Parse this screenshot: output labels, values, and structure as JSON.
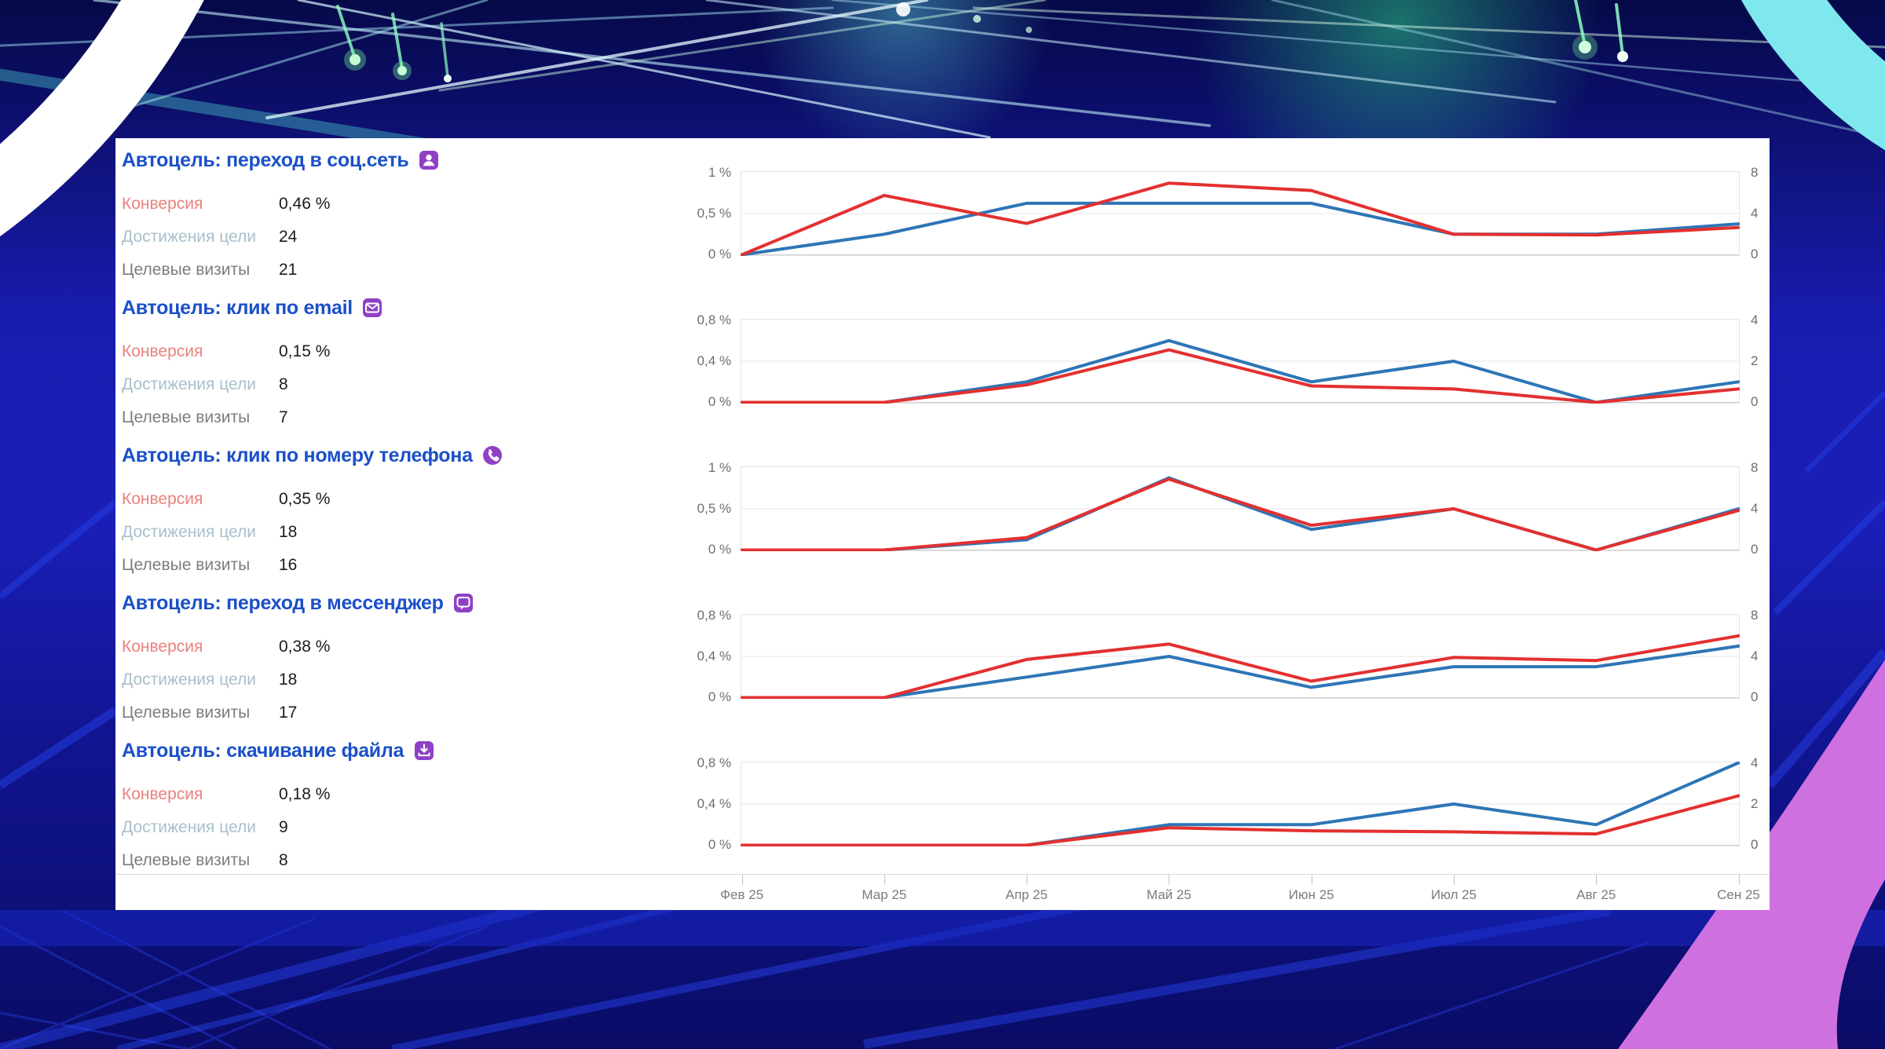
{
  "colors": {
    "title_blue": "#1b50c8",
    "icon_purple": "#8f41c6",
    "conversion_label_color": "#e8827e",
    "reaches_label_color": "#a9bfcc",
    "visits_label_color": "#7d7d7d",
    "line_red": "#e33030",
    "line_blue": "#2e75b6",
    "deco_white_ring": "#ffffff",
    "deco_cyan_ring": "#7fe7ee",
    "deco_violet_band": "#cf70e0",
    "background_navy": "#181cae"
  },
  "metric_labels": {
    "conversion": "Конверсия",
    "reaches": "Достижения цели",
    "visits": "Целевые визиты"
  },
  "months": [
    "Фев 25",
    "Мар 25",
    "Апр 25",
    "Май 25",
    "Июн 25",
    "Июл 25",
    "Авг 25",
    "Сен 25"
  ],
  "goals": [
    {
      "title": "Автоцель: переход в соц.сеть",
      "icon": "user-icon",
      "conversion": "0,46 %",
      "reaches": "24",
      "visits": "21"
    },
    {
      "title": "Автоцель: клик по email",
      "icon": "email-icon",
      "conversion": "0,15 %",
      "reaches": "8",
      "visits": "7"
    },
    {
      "title": "Автоцель: клик по номеру телефона",
      "icon": "phone-icon",
      "conversion": "0,35 %",
      "reaches": "18",
      "visits": "16"
    },
    {
      "title": "Автоцель: переход в мессенджер",
      "icon": "messenger-icon",
      "conversion": "0,38 %",
      "reaches": "18",
      "visits": "17"
    },
    {
      "title": "Автоцель: скачивание файла",
      "icon": "download-icon",
      "conversion": "0,18 %",
      "reaches": "9",
      "visits": "8"
    }
  ],
  "chart_data": [
    {
      "type": "line",
      "title": "Автоцель: переход в соц.сеть",
      "categories": [
        "Фев 25",
        "Мар 25",
        "Апр 25",
        "Май 25",
        "Июн 25",
        "Июл 25",
        "Авг 25",
        "Сен 25"
      ],
      "left_axis": {
        "labels": [
          "1 %",
          "0,5 %",
          "0 %"
        ],
        "max": 1,
        "min": 0,
        "unit": "%"
      },
      "right_axis": {
        "labels": [
          "8",
          "4",
          "0"
        ],
        "max": 8,
        "min": 0
      },
      "grid": true,
      "legend": "none",
      "series": [
        {
          "name": "Достижения цели",
          "axis": "right",
          "color": "#2e75b6",
          "values": [
            0,
            2,
            5,
            5,
            5,
            2,
            2,
            3
          ]
        },
        {
          "name": "Конверсия",
          "axis": "left",
          "color": "#e33030",
          "values": [
            0,
            0.72,
            0.38,
            0.87,
            0.78,
            0.25,
            0.24,
            0.33
          ]
        }
      ]
    },
    {
      "type": "line",
      "title": "Автоцель: клик по email",
      "categories": [
        "Фев 25",
        "Мар 25",
        "Апр 25",
        "Май 25",
        "Июн 25",
        "Июл 25",
        "Авг 25",
        "Сен 25"
      ],
      "left_axis": {
        "labels": [
          "0,8 %",
          "0,4 %",
          "0 %"
        ],
        "max": 0.8,
        "min": 0,
        "unit": "%"
      },
      "right_axis": {
        "labels": [
          "4",
          "2",
          "0"
        ],
        "max": 4,
        "min": 0
      },
      "grid": true,
      "legend": "none",
      "series": [
        {
          "name": "Достижения цели",
          "axis": "right",
          "color": "#2e75b6",
          "values": [
            0,
            0,
            1,
            3,
            1,
            2,
            0,
            1
          ]
        },
        {
          "name": "Конверсия",
          "axis": "left",
          "color": "#e33030",
          "values": [
            0,
            0,
            0.17,
            0.51,
            0.16,
            0.13,
            0,
            0.13
          ]
        }
      ]
    },
    {
      "type": "line",
      "title": "Автоцель: клик по номеру телефона",
      "categories": [
        "Фев 25",
        "Мар 25",
        "Апр 25",
        "Май 25",
        "Июн 25",
        "Июл 25",
        "Авг 25",
        "Сен 25"
      ],
      "left_axis": {
        "labels": [
          "1 %",
          "0,5 %",
          "0 %"
        ],
        "max": 1,
        "min": 0,
        "unit": "%"
      },
      "right_axis": {
        "labels": [
          "8",
          "4",
          "0"
        ],
        "max": 8,
        "min": 0
      },
      "grid": true,
      "legend": "none",
      "series": [
        {
          "name": "Достижения цели",
          "axis": "right",
          "color": "#2e75b6",
          "values": [
            0,
            0,
            1,
            7,
            2,
            4,
            0,
            4
          ]
        },
        {
          "name": "Конверсия",
          "axis": "left",
          "color": "#e33030",
          "values": [
            0,
            0,
            0.15,
            0.86,
            0.3,
            0.5,
            0,
            0.48
          ]
        }
      ]
    },
    {
      "type": "line",
      "title": "Автоцель: переход в мессенджер",
      "categories": [
        "Фев 25",
        "Мар 25",
        "Апр 25",
        "Май 25",
        "Июн 25",
        "Июл 25",
        "Авг 25",
        "Сен 25"
      ],
      "left_axis": {
        "labels": [
          "0,8 %",
          "0,4 %",
          "0 %"
        ],
        "max": 0.8,
        "min": 0,
        "unit": "%"
      },
      "right_axis": {
        "labels": [
          "8",
          "4",
          "0"
        ],
        "max": 8,
        "min": 0
      },
      "grid": true,
      "legend": "none",
      "series": [
        {
          "name": "Достижения цели",
          "axis": "right",
          "color": "#2e75b6",
          "values": [
            0,
            0,
            2,
            4,
            1,
            3,
            3,
            5
          ]
        },
        {
          "name": "Конверсия",
          "axis": "left",
          "color": "#e33030",
          "values": [
            0,
            0,
            0.37,
            0.52,
            0.16,
            0.39,
            0.36,
            0.6
          ]
        }
      ]
    },
    {
      "type": "line",
      "title": "Автоцель: скачивание файла",
      "categories": [
        "Фев 25",
        "Мар 25",
        "Апр 25",
        "Май 25",
        "Июн 25",
        "Июл 25",
        "Авг 25",
        "Сен 25"
      ],
      "left_axis": {
        "labels": [
          "0,8 %",
          "0,4 %",
          "0 %"
        ],
        "max": 0.8,
        "min": 0,
        "unit": "%"
      },
      "right_axis": {
        "labels": [
          "4",
          "2",
          "0"
        ],
        "max": 4,
        "min": 0
      },
      "grid": true,
      "legend": "none",
      "series": [
        {
          "name": "Достижения цели",
          "axis": "right",
          "color": "#2e75b6",
          "values": [
            0,
            0,
            0,
            1,
            1,
            2,
            1,
            4
          ]
        },
        {
          "name": "Конверсия",
          "axis": "left",
          "color": "#e33030",
          "values": [
            0,
            0,
            0,
            0.17,
            0.14,
            0.13,
            0.11,
            0.48
          ]
        }
      ]
    }
  ]
}
